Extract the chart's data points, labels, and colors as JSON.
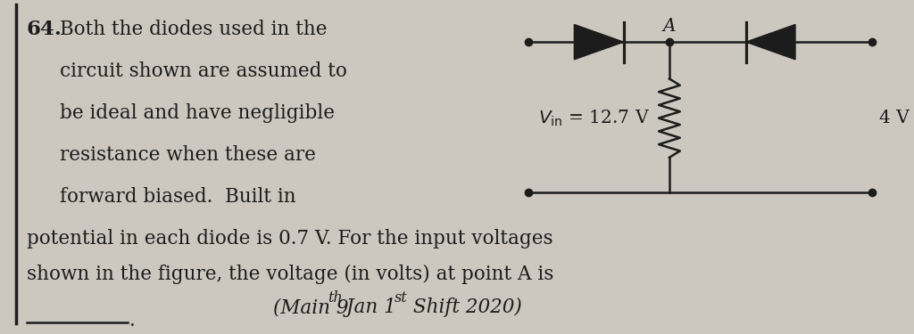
{
  "background_color": "#ccc8bf",
  "question_number": "64.",
  "main_text_lines": [
    "Both the diodes used in the",
    "circuit shown are assumed to",
    "be ideal and have negligible",
    "resistance when these are",
    "forward biased.  Built in"
  ],
  "bottom_text_line1": "potential in each diode is 0.7 V. For the input voltages",
  "bottom_text_line2": "shown in the figure, the voltage (in volts) at point A is",
  "bottom_text_line3_pre": "(Main 9",
  "bottom_text_line3_sup1": "th",
  "bottom_text_line3_mid": " Jan 1",
  "bottom_text_line3_sup2": "st",
  "bottom_text_line3_end": " Shift 2020)",
  "vin_label": "V",
  "vin_subscript": "in",
  "vin_value": "= 12.7 V",
  "v4_label": "4 V",
  "point_A_label": "A",
  "text_color": "#1c1c1c",
  "circuit_color": "#1c1c1c",
  "font_size_main": 15.5,
  "font_size_bottom": 15.5
}
